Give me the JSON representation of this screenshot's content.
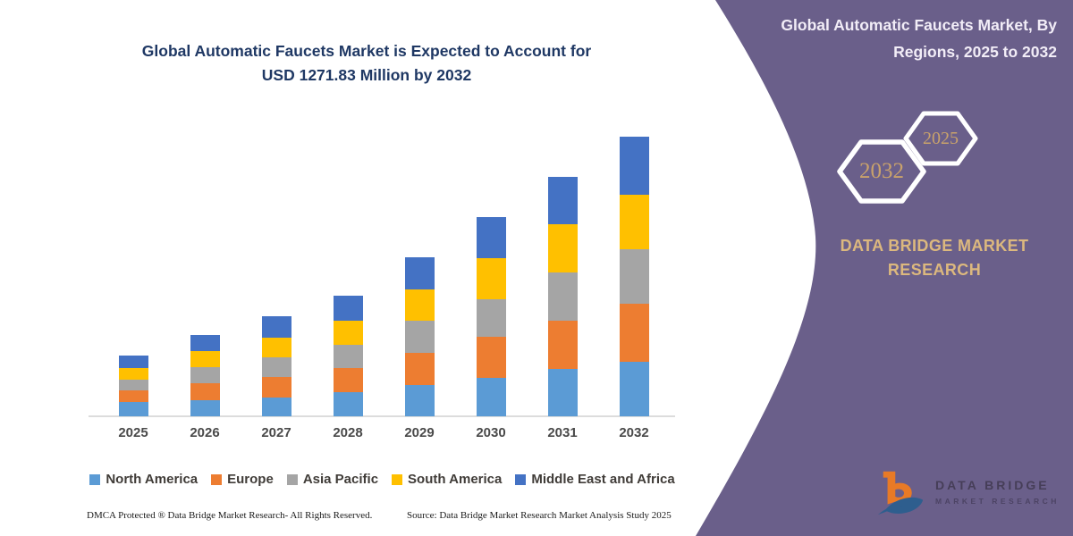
{
  "header": {
    "title_line1": "Global Automatic Faucets Market is Expected to Account for",
    "title_line2": "USD 1271.83 Million by 2032"
  },
  "chart_data": {
    "type": "bar",
    "stacked": true,
    "title": "Global Automatic Faucets Market is Expected to Account for USD 1271.83 Million by 2032",
    "unit": "USD Million",
    "categories": [
      "2025",
      "2026",
      "2027",
      "2028",
      "2029",
      "2030",
      "2031",
      "2032"
    ],
    "series": [
      {
        "name": "North America",
        "color": "#5B9BD5",
        "values": [
          64,
          73,
          86,
          109,
          143,
          174,
          215,
          246
        ]
      },
      {
        "name": "Europe",
        "color": "#ED7D31",
        "values": [
          52,
          78,
          91,
          109,
          146,
          188,
          218,
          266
        ]
      },
      {
        "name": "Asia Pacific",
        "color": "#A5A5A5",
        "values": [
          50,
          72,
          91,
          109,
          147,
          172,
          221,
          249
        ]
      },
      {
        "name": "South America",
        "color": "#FFC000",
        "values": [
          54,
          75,
          88,
          109,
          143,
          184,
          218,
          247
        ]
      },
      {
        "name": "Middle East and Africa",
        "color": "#4472C4",
        "values": [
          55,
          71,
          99,
          113,
          143,
          187,
          216,
          263.83
        ]
      }
    ],
    "totals": [
      275,
      369,
      455,
      549,
      722,
      905,
      1088,
      1271.83
    ],
    "highlight_total_2032": 1271.83,
    "ylim": [
      0,
      1280
    ],
    "grid": false,
    "y_axis_visible": false,
    "legend_position": "bottom",
    "axis_line_color": "#dcdcdc"
  },
  "sidebar": {
    "title": "Global Automatic Faucets Market, By Regions, 2025 to 2032",
    "hexagons": [
      {
        "label": "2032"
      },
      {
        "label": "2025"
      }
    ],
    "brand_line1": "DATA BRIDGE MARKET",
    "brand_line2": "RESEARCH",
    "colors": {
      "background": "#6a5f8a",
      "accent_gold": "#c9a26b",
      "brand_gold": "#dcb87e",
      "hex_border": "#ffffff"
    }
  },
  "logo": {
    "text_primary": "DATA BRIDGE",
    "text_secondary": "MARKET RESEARCH",
    "mark_orange": "#e87a26",
    "mark_blue": "#2e5e8e"
  },
  "footer": {
    "dmca": "DMCA Protected ® Data Bridge Market Research-  All Rights Reserved.",
    "source": "Source: Data Bridge Market Research  Market Analysis Study 2025"
  }
}
